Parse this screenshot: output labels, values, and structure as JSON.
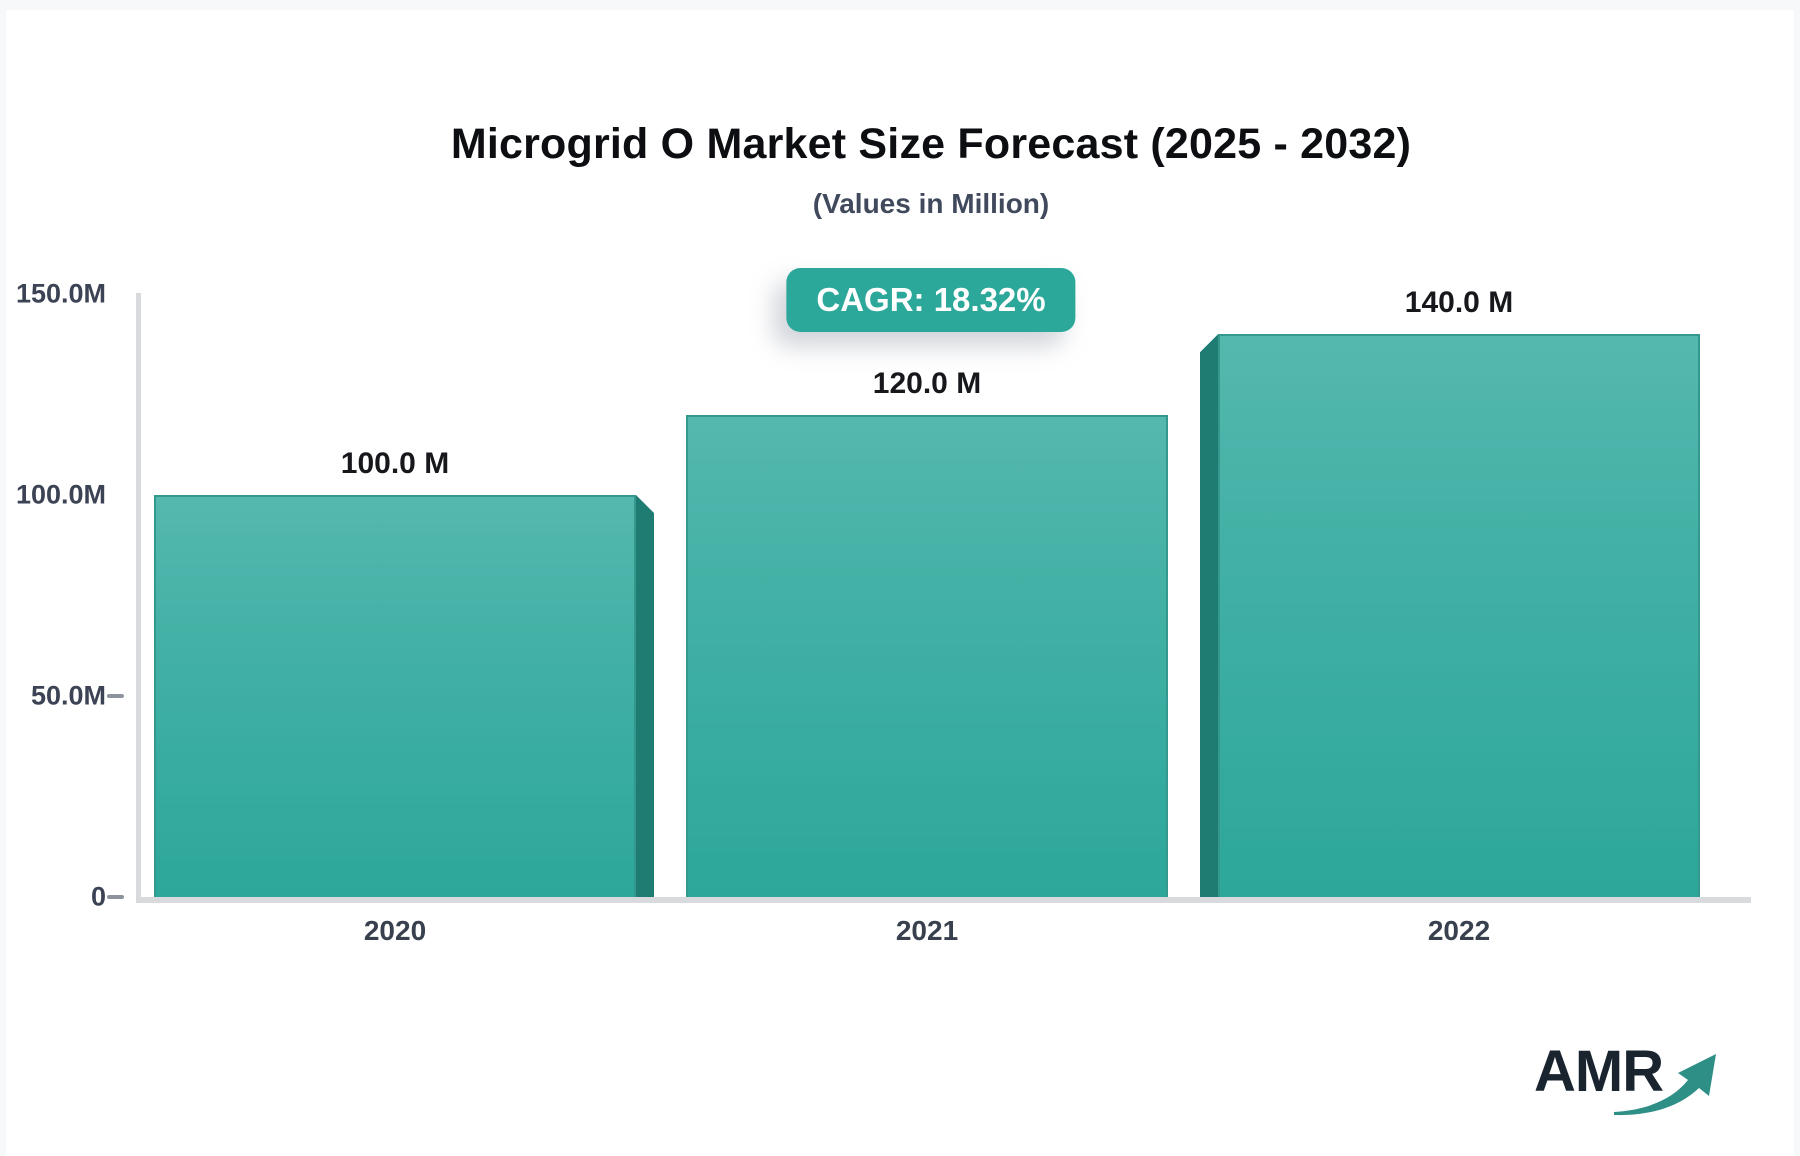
{
  "header": {
    "title": "Microgrid O Market Size Forecast (2025 - 2032)",
    "subtitle": "(Values in Million)"
  },
  "badge": {
    "label": "CAGR: 18.32%"
  },
  "chart_data": {
    "type": "bar",
    "title": "Microgrid O Market Size Forecast (2025 - 2032)",
    "subtitle": "(Values in Million)",
    "categories": [
      "2020",
      "2021",
      "2022"
    ],
    "values": [
      100,
      120,
      140
    ],
    "value_labels": [
      "100.0 M",
      "120.0 M",
      "140.0 M"
    ],
    "xlabel": "",
    "ylabel": "",
    "ylim": [
      0,
      150
    ],
    "yticks": [
      {
        "value": 0,
        "label": "0",
        "dash": true
      },
      {
        "value": 50,
        "label": "50.0M",
        "dash": true
      },
      {
        "value": 100,
        "label": "100.0M",
        "dash": false
      },
      {
        "value": 150,
        "label": "150.0M",
        "dash": false
      }
    ],
    "grid": false,
    "legend": "none",
    "bar_extrusion_sides": [
      "right",
      "none",
      "left"
    ],
    "colors": {
      "bar_top": "#55b8ae",
      "bar_bottom": "#2ca79a",
      "bar_edge": "#1f7c72",
      "axis": "#d8dade",
      "badge_bg": "#2ba89a",
      "badge_text": "#ffffff"
    }
  },
  "logo": {
    "text": "AMR"
  }
}
